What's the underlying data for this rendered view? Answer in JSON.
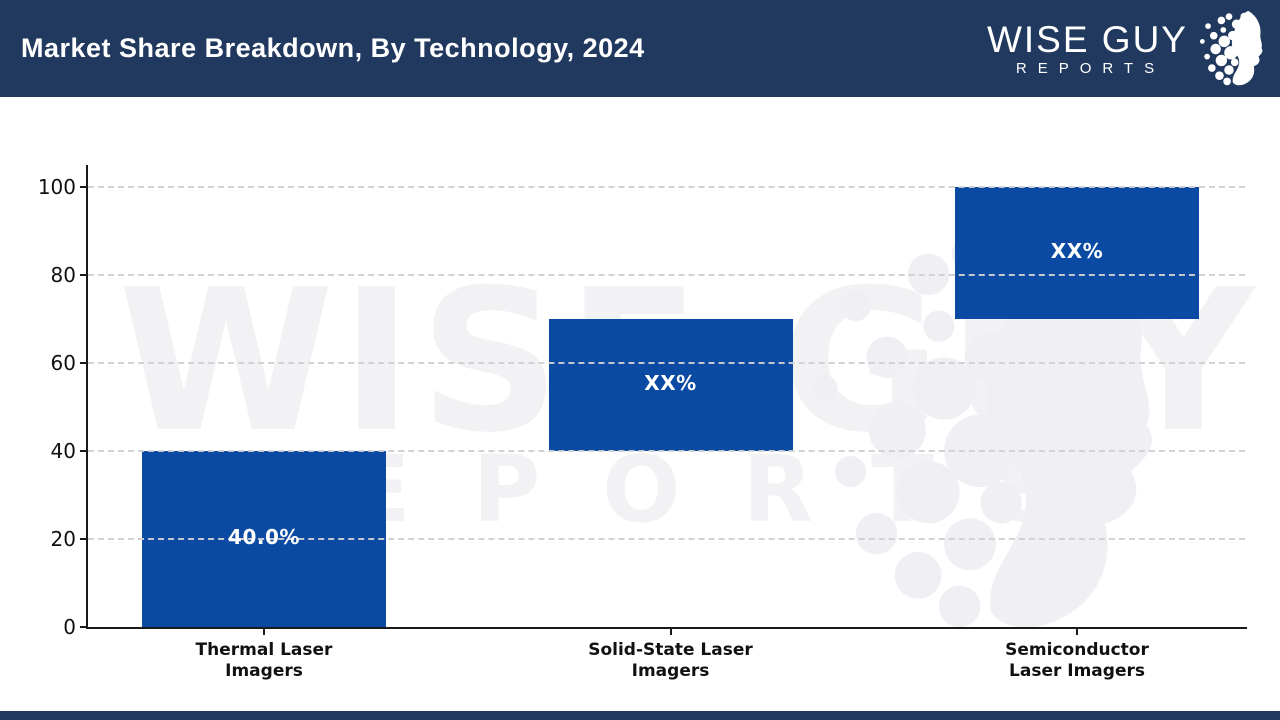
{
  "header": {
    "title": "Market Share Breakdown, By Technology, 2024",
    "logo": {
      "line1": "WISE GUY",
      "line2": "REPORTS"
    }
  },
  "watermark": {
    "line1": "WISE GUY",
    "line2": "REPORTS"
  },
  "theme": {
    "header_bg": "#22395f",
    "bar_color": "#0b4aa2",
    "grid_color": "#d2d2d4",
    "axis_color": "#1a1a1a",
    "watermark_color": "#f2f2f5"
  },
  "chart_data": {
    "type": "bar",
    "subtype": "floating-breakdown",
    "title": "Market Share Breakdown, By Technology, 2024",
    "categories": [
      "Thermal Laser\nImagers",
      "Solid-State Laser\nImagers",
      "Semiconductor\nLaser Imagers"
    ],
    "series": [
      {
        "name": "Market Share",
        "segments": [
          {
            "category": "Thermal Laser Imagers",
            "start": 0,
            "end": 40,
            "label": "40.0%"
          },
          {
            "category": "Solid-State Laser Imagers",
            "start": 40,
            "end": 70,
            "label": "XX%"
          },
          {
            "category": "Semiconductor Laser Imagers",
            "start": 70,
            "end": 100,
            "label": "XX%"
          }
        ]
      }
    ],
    "xlabel": "",
    "ylabel": "",
    "ylim": [
      0,
      100
    ],
    "yticks": [
      0,
      20,
      40,
      60,
      80,
      100
    ],
    "grid": "dashed-horizontal",
    "legend": "none",
    "bar_value_color": "#ffffff"
  }
}
